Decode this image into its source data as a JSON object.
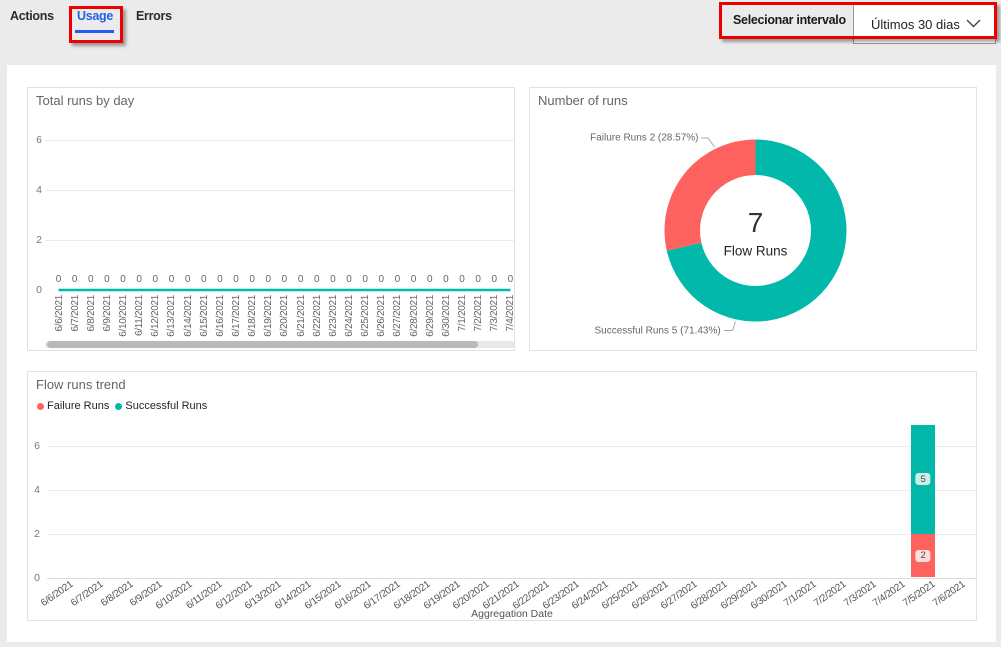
{
  "tabs": {
    "items": [
      {
        "label": "Actions",
        "selected": false
      },
      {
        "label": "Usage",
        "selected": true
      },
      {
        "label": "Errors",
        "selected": false
      }
    ]
  },
  "interval_picker": {
    "label": "Selecionar intervalo",
    "value": "Últimos 30 dias"
  },
  "colors": {
    "failure": "#fd625e",
    "success": "#01b8aa",
    "accent_blue": "#2463e6",
    "annotation_red": "#ee0000",
    "badge_failure_bg": "#fedfde",
    "badge_success_bg": "#cceee9"
  },
  "chart_data": [
    {
      "type": "line",
      "title": "Total runs by day",
      "categories": [
        "6/6/2021",
        "6/7/2021",
        "6/8/2021",
        "6/9/2021",
        "6/10/2021",
        "6/11/2021",
        "6/12/2021",
        "6/13/2021",
        "6/14/2021",
        "6/15/2021",
        "6/16/2021",
        "6/17/2021",
        "6/18/2021",
        "6/19/2021",
        "6/20/2021",
        "6/21/2021",
        "6/22/2021",
        "6/23/2021",
        "6/24/2021",
        "6/25/2021",
        "6/26/2021",
        "6/27/2021",
        "6/28/2021",
        "6/29/2021",
        "6/30/2021",
        "7/1/2021",
        "7/2/2021",
        "7/3/2021",
        "7/4/2021"
      ],
      "series": [
        {
          "name": "Total runs",
          "color_key": "success",
          "values": [
            0,
            0,
            0,
            0,
            0,
            0,
            0,
            0,
            0,
            0,
            0,
            0,
            0,
            0,
            0,
            0,
            0,
            0,
            0,
            0,
            0,
            0,
            0,
            0,
            0,
            0,
            0,
            0,
            0
          ]
        }
      ],
      "yticks": [
        0,
        2,
        4,
        6
      ],
      "ylim": [
        0,
        6
      ],
      "data_labels": true,
      "has_scrollbar": true
    },
    {
      "type": "donut",
      "title": "Number of runs",
      "slices": [
        {
          "name": "Failure Runs",
          "value": 2,
          "pct": "28.57%",
          "color_key": "failure"
        },
        {
          "name": "Successful Runs",
          "value": 5,
          "pct": "71.43%",
          "color_key": "success"
        }
      ],
      "center": {
        "value": "7",
        "label": "Flow Runs"
      }
    },
    {
      "type": "stacked_bar",
      "title": "Flow runs trend",
      "xlabel": "Aggregation Date",
      "categories": [
        "6/6/2021",
        "6/7/2021",
        "6/8/2021",
        "6/9/2021",
        "6/10/2021",
        "6/11/2021",
        "6/12/2021",
        "6/13/2021",
        "6/14/2021",
        "6/15/2021",
        "6/16/2021",
        "6/17/2021",
        "6/18/2021",
        "6/19/2021",
        "6/20/2021",
        "6/21/2021",
        "6/22/2021",
        "6/23/2021",
        "6/24/2021",
        "6/25/2021",
        "6/26/2021",
        "6/27/2021",
        "6/28/2021",
        "6/29/2021",
        "6/30/2021",
        "7/1/2021",
        "7/2/2021",
        "7/3/2021",
        "7/4/2021",
        "7/5/2021",
        "7/6/2021"
      ],
      "series": [
        {
          "name": "Failure Runs",
          "color_key": "failure",
          "values": [
            0,
            0,
            0,
            0,
            0,
            0,
            0,
            0,
            0,
            0,
            0,
            0,
            0,
            0,
            0,
            0,
            0,
            0,
            0,
            0,
            0,
            0,
            0,
            0,
            0,
            0,
            0,
            0,
            0,
            2,
            0
          ]
        },
        {
          "name": "Successful Runs",
          "color_key": "success",
          "values": [
            0,
            0,
            0,
            0,
            0,
            0,
            0,
            0,
            0,
            0,
            0,
            0,
            0,
            0,
            0,
            0,
            0,
            0,
            0,
            0,
            0,
            0,
            0,
            0,
            0,
            0,
            0,
            0,
            0,
            5,
            0
          ]
        }
      ],
      "yticks": [
        0,
        2,
        4,
        6
      ],
      "ylim": [
        0,
        7
      ]
    }
  ]
}
